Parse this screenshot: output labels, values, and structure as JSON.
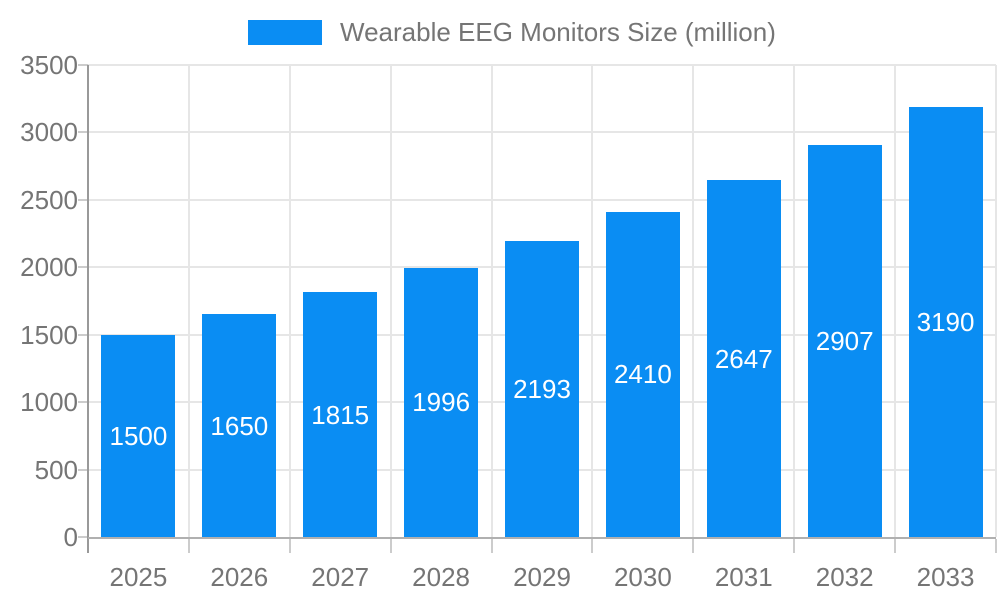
{
  "chart_data": {
    "type": "bar",
    "title": "Wearable EEG Monitors Size (million)",
    "categories": [
      "2025",
      "2026",
      "2027",
      "2028",
      "2029",
      "2030",
      "2031",
      "2032",
      "2033"
    ],
    "series": [
      {
        "name": "Wearable EEG Monitors Size (million)",
        "values": [
          1500,
          1650,
          1815,
          1996,
          2193,
          2410,
          2647,
          2907,
          3190
        ]
      }
    ],
    "value_labels": [
      "1500",
      "1650",
      "1815",
      "1996",
      "2193",
      "2410",
      "2647",
      "2907",
      "3190"
    ],
    "value_label_position": "inside-center",
    "xlabel": "",
    "ylabel": "",
    "ylim": [
      0,
      3500
    ],
    "ytick_step": 500,
    "yticks": [
      "0",
      "500",
      "1000",
      "1500",
      "2000",
      "2500",
      "3000",
      "3500"
    ],
    "grid": "both",
    "legend_position": "top"
  },
  "colors": {
    "bar": "#0a8df3",
    "background": "#ffffff",
    "grid": "#e6e6e6",
    "axis_y": "#999999",
    "axis_x": "#b0b0b0",
    "tick_minor": "#cccccc",
    "text": "#757575",
    "value_label": "#ffffff"
  }
}
